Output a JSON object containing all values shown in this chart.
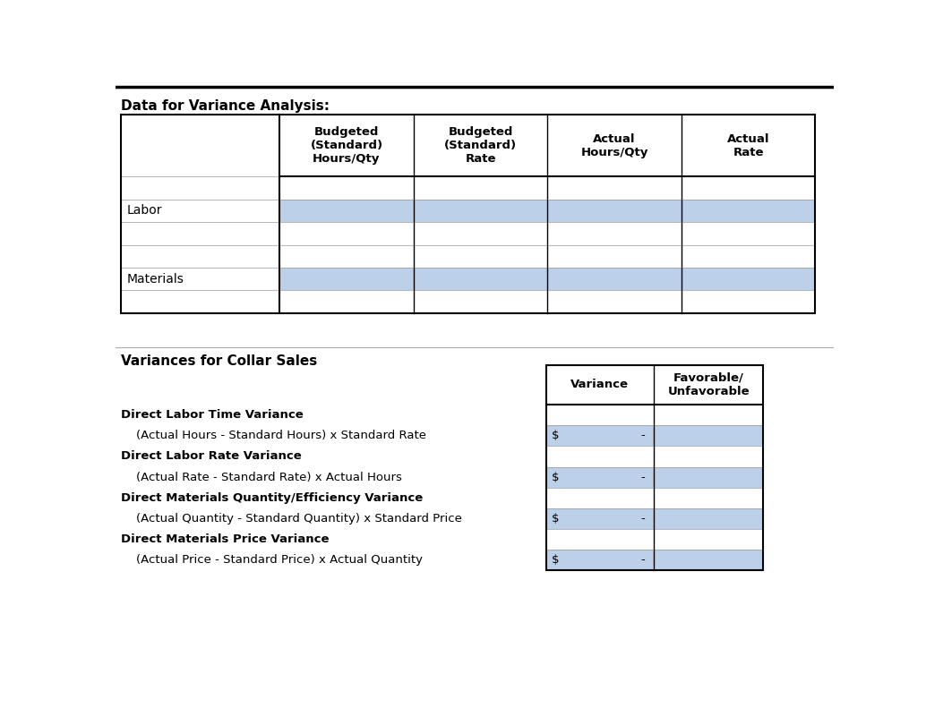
{
  "title1": "Data for Variance Analysis:",
  "title2": "Variances for Collar Sales",
  "table1_col_headers": [
    "Budgeted\n(Standard)\nHours/Qty",
    "Budgeted\n(Standard)\nRate",
    "Actual\nHours/Qty",
    "Actual\nRate"
  ],
  "table1_row_labels": [
    "Labor",
    "Materials"
  ],
  "table2_col_headers": [
    "Variance",
    "Favorable/\nUnfavorable"
  ],
  "table2_rows": [
    {
      "bold": "Direct Labor Time Variance",
      "formula": "    (Actual Hours - Standard Hours) x Standard Rate"
    },
    {
      "bold": "Direct Labor Rate Variance",
      "formula": "    (Actual Rate - Standard Rate) x Actual Hours"
    },
    {
      "bold": "Direct Materials Quantity/Efficiency Variance",
      "formula": "    (Actual Quantity - Standard Quantity) x Standard Price"
    },
    {
      "bold": "Direct Materials Price Variance",
      "formula": "    (Actual Price - Standard Price) x Actual Quantity"
    }
  ],
  "light_blue": "#bdd0e9",
  "white": "#ffffff",
  "black": "#000000",
  "gray_line": "#888888",
  "bg_color": "#ffffff"
}
